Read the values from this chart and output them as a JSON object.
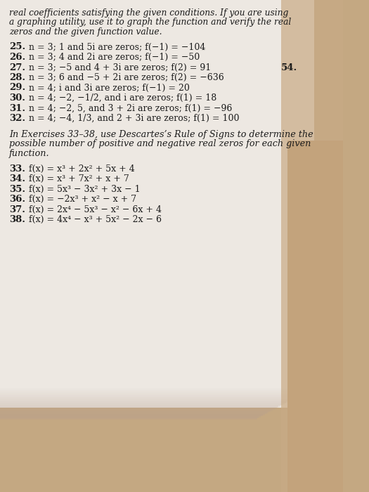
{
  "page_bg_top": "#e8e0d8",
  "page_bg_content": "#f0ece6",
  "desk_color": "#c4a882",
  "shadow_color": "#b8a090",
  "intro_text_lines": [
    "real coefficients satisfying the given conditions. If you are using",
    "a graphing utility, use it to graph the function and verify the real",
    "zeros and the given function value."
  ],
  "problems_25_32": [
    {
      "num": "25.",
      "body": "n = 3; 1 and 5i are zeros; f(−1) = −104"
    },
    {
      "num": "26.",
      "body": "n = 3; 4 and 2i are zeros; f(−1) = −50"
    },
    {
      "num": "27.",
      "body": "n = 3; −5 and 4 + 3i are zeros; f(2) = 91",
      "side": "54."
    },
    {
      "num": "28.",
      "body": "n = 3; 6 and −5 + 2i are zeros; f(2) = −636"
    },
    {
      "num": "29.",
      "body": "n = 4; i and 3i are zeros; f(−1) = 20"
    },
    {
      "num": "30.",
      "body": "n = 4; −2, −1/2, and i are zeros; f(1) = 18"
    },
    {
      "num": "31.",
      "body": "n = 4; −2, 5, and 3 + 2i are zeros; f(1) = −96"
    },
    {
      "num": "32.",
      "body": "n = 4; −4, 1/3, and 2 + 3i are zeros; f(1) = 100"
    }
  ],
  "exercises_intro_lines": [
    "In Exercises 33–38, use Descartes’s Rule of Signs to determine the",
    "possible number of positive and negative real zeros for each given",
    "function."
  ],
  "problems_33_38": [
    {
      "num": "33.",
      "body": "f(x) = x³ + 2x² + 5x + 4"
    },
    {
      "num": "34.",
      "body": "f(x) = x³ + 7x² + x + 7"
    },
    {
      "num": "35.",
      "body": "f(x) = 5x³ − 3x² + 3x − 1"
    },
    {
      "num": "36.",
      "body": "f(x) = −2x³ + x² − x + 7"
    },
    {
      "num": "37.",
      "body": "f(x) = 2x⁴ − 5x³ − x² − 6x + 4"
    },
    {
      "num": "38.",
      "body": "f(x) = 4x⁴ − x³ + 5x² − 2x − 6"
    }
  ],
  "text_color": "#1c1c1c",
  "intro_fontsize": 8.8,
  "prob_num_fontsize": 9.5,
  "prob_body_fontsize": 9.0,
  "exer_intro_fontsize": 9.2,
  "prob33_num_fontsize": 9.5,
  "prob33_body_fontsize": 9.0
}
